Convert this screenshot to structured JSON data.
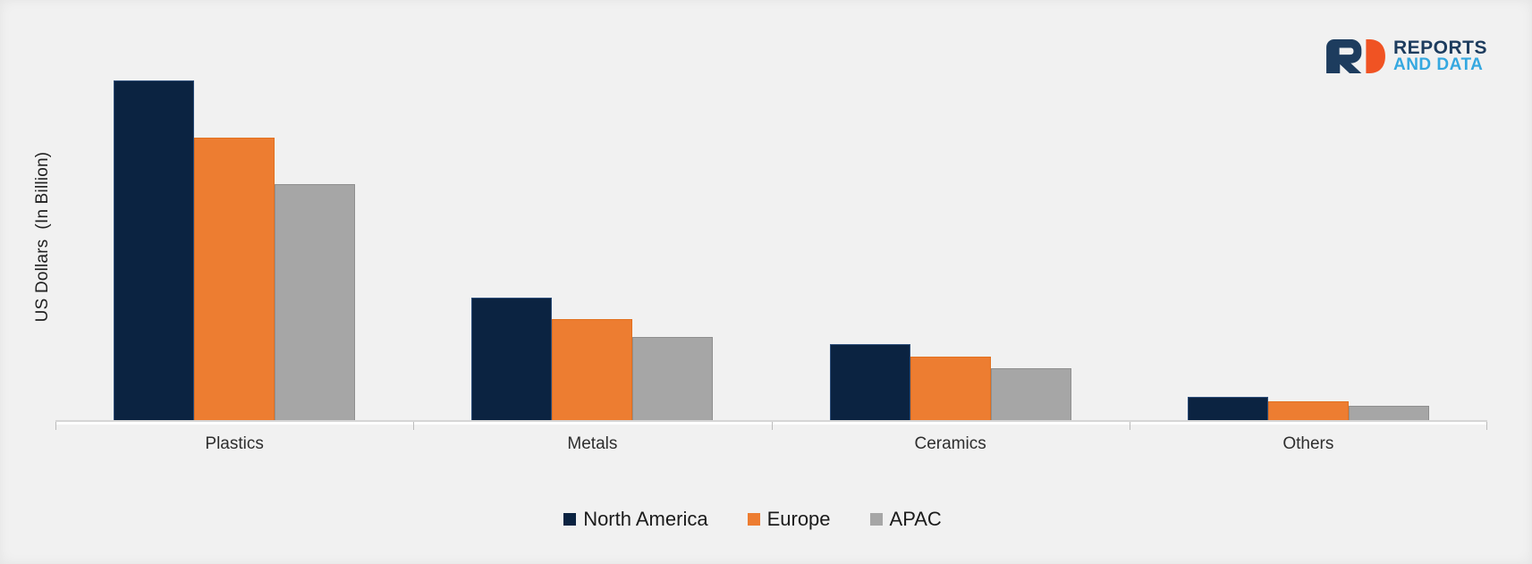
{
  "background": "#f1f1f1",
  "logo": {
    "text_top": "REPORTS",
    "text_bottom": "AND DATA",
    "mark_r_color": "#1d3c5e",
    "mark_d_color": "#f05323",
    "text_top_color": "#1d3c5e",
    "text_bottom_color": "#35a8e0"
  },
  "chart_data": {
    "type": "bar",
    "title": "",
    "xlabel": "",
    "ylabel": "US Dollars  (In Billion)",
    "categories": [
      "Plastics",
      "Metals",
      "Ceramics",
      "Others"
    ],
    "series": [
      {
        "name": "North America",
        "color": "#0b2341",
        "border": "#2d4e7a",
        "values": [
          38.0,
          13.7,
          8.5,
          2.6
        ]
      },
      {
        "name": "Europe",
        "color": "#ed7d31",
        "border": "#e2701f",
        "values": [
          31.6,
          11.3,
          7.1,
          2.1
        ]
      },
      {
        "name": "APAC",
        "color": "#a6a6a6",
        "border": "#8f8f8f",
        "values": [
          26.4,
          9.3,
          5.8,
          1.6
        ]
      }
    ],
    "ylim": [
      0,
      41
    ],
    "grid": false,
    "y_tick_labels_visible": false,
    "legend_position": "bottom",
    "axis_color": "#d6d6d6",
    "tick_color": "#bcbcbc",
    "category_label_color": "#2e2e2e",
    "legend_text_color": "#1b1b1b"
  }
}
